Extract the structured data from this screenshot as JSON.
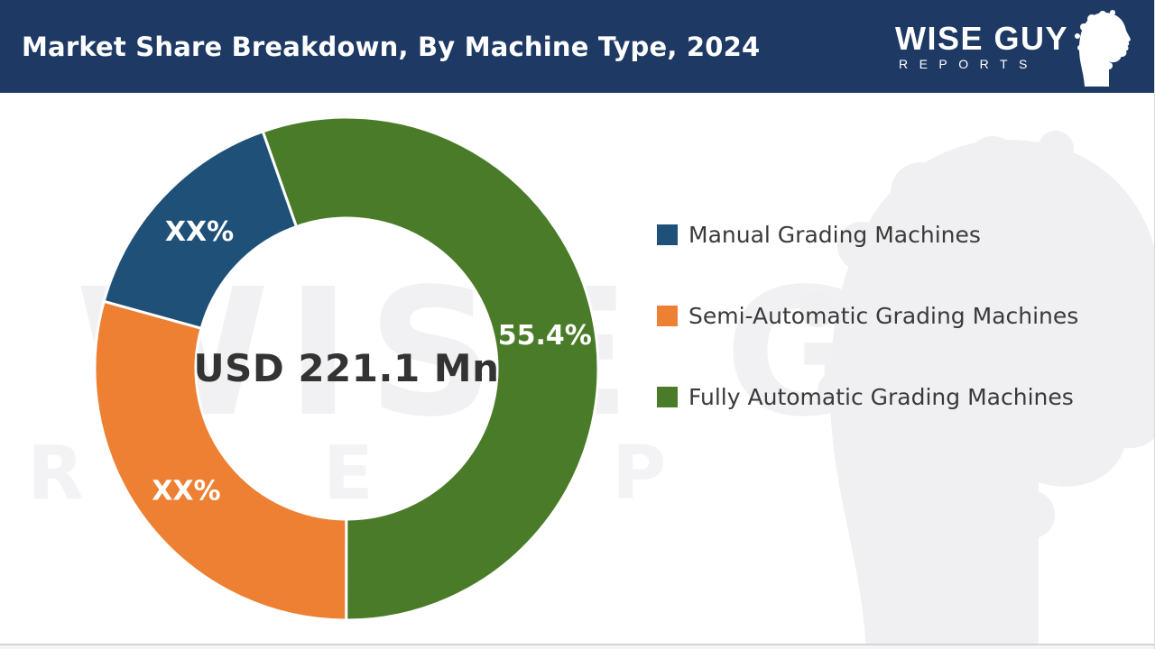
{
  "header": {
    "title": "Market Share Breakdown, By Machine Type, 2024",
    "logo_primary": "WISE GUY",
    "logo_secondary": "REPORTS"
  },
  "watermark": {
    "primary": "WISE GUY",
    "secondary": "R E P O R T S"
  },
  "chart_data": {
    "type": "pie",
    "subtype": "donut",
    "title": "Market Share Breakdown, By Machine Type, 2024",
    "center_label": "USD 221.1 Mn",
    "legend_position": "right",
    "start_angle_compass_deg": 340.6,
    "inner_radius_ratio": 0.6,
    "segments": [
      {
        "label": "Manual Grading Machines",
        "display_value": "XX%",
        "value_pct": 15.3,
        "color": "#1f5077",
        "label_color": "#ffffff"
      },
      {
        "label": "Semi-Automatic Grading Machines",
        "display_value": "XX%",
        "value_pct": 29.3,
        "color": "#ee8033",
        "label_color": "#ffffff"
      },
      {
        "label": "Fully Automatic Grading Machines",
        "display_value": "55.4%",
        "value_pct": 55.4,
        "color": "#4a7b28",
        "label_color": "#ffffff"
      }
    ]
  },
  "colors": {
    "header_bg": "#1e3a64",
    "page_bg": "#ffffff",
    "legend_text": "#3a3a3a",
    "center_text": "#333333",
    "watermark": "#f1f1f3",
    "separator": "#d4d4d6"
  }
}
